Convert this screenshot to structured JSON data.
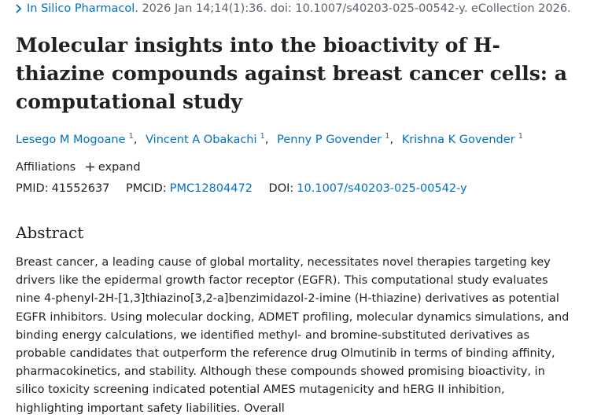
{
  "citation": {
    "journal": "In Silico Pharmacol.",
    "details": "2026 Jan 14;14(1):36. doi: 10.1007/s40203-025-00542-y. eCollection 2026."
  },
  "title": "Molecular insights into the bioactivity of H-thiazine compounds against breast cancer cells: a computational study",
  "authors": [
    {
      "name": "Lesego M Mogoane",
      "sup": "1"
    },
    {
      "name": "Vincent A Obakachi",
      "sup": "1"
    },
    {
      "name": "Penny P Govender",
      "sup": "1"
    },
    {
      "name": "Krishna K Govender",
      "sup": "1"
    }
  ],
  "affiliations": {
    "label": "Affiliations",
    "expand": "expand"
  },
  "identifiers": {
    "pmid_label": "PMID:",
    "pmid": "41552637",
    "pmcid_label": "PMCID:",
    "pmcid": "PMC12804472",
    "doi_label": "DOI:",
    "doi": "10.1007/s40203-025-00542-y"
  },
  "abstract": {
    "heading": "Abstract",
    "text": "Breast cancer, a leading cause of global mortality, necessitates novel therapies targeting key drivers like the epidermal growth factor receptor (EGFR). This computational study evaluates nine 4-phenyl-2H-[1,3]thiazino[3,2-a]benzimidazol-2-imine (H-thiazine) derivatives as potential EGFR inhibitors. Using molecular docking, ADMET profiling, molecular dynamics simulations, and binding energy calculations, we identified methyl- and bromine-substituted derivatives as probable candidates that outperform the reference drug Olmutinib in terms of binding affinity, pharmacokinetics, and stability. Although these compounds showed promising bioactivity, in silico toxicity screening indicated potential AMES mutagenicity and hERG II inhibition, highlighting important safety liabilities. Overall"
  }
}
